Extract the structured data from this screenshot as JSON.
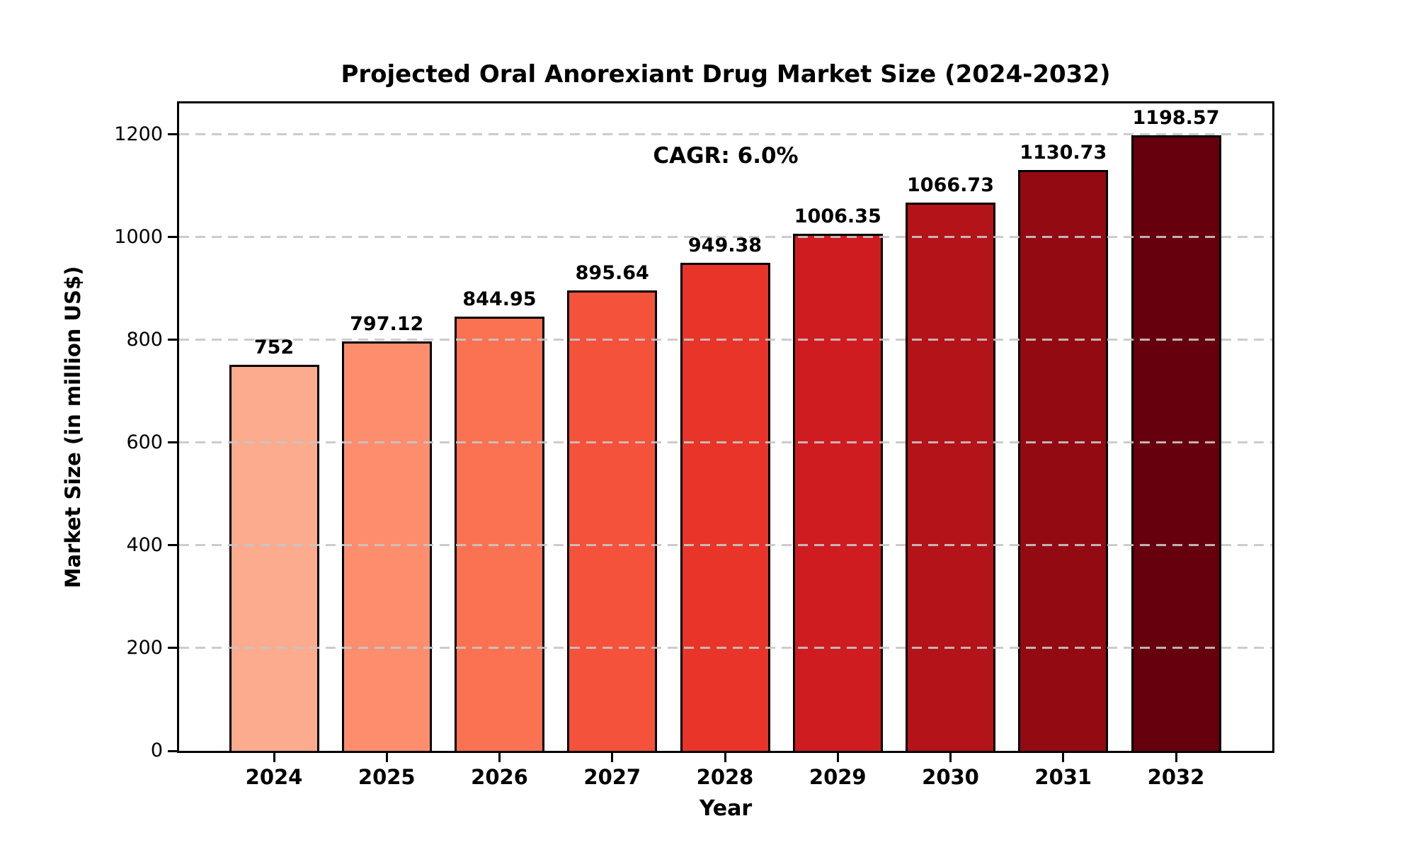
{
  "chart_data": {
    "type": "bar",
    "title": "Projected Oral Anorexiant Drug Market Size (2024-2032)",
    "annotation": "CAGR: 6.0%",
    "xlabel": "Year",
    "ylabel": "Market Size (in million US$)",
    "categories": [
      "2024",
      "2025",
      "2026",
      "2027",
      "2028",
      "2029",
      "2030",
      "2031",
      "2032"
    ],
    "values": [
      752,
      797.12,
      844.95,
      895.64,
      949.38,
      1006.35,
      1066.73,
      1130.73,
      1198.57
    ],
    "value_labels": [
      "752",
      "797.12",
      "844.95",
      "895.64",
      "949.38",
      "1006.35",
      "1066.73",
      "1130.73",
      "1198.57"
    ],
    "bar_colors": [
      "#fcab8e",
      "#fc8e6e",
      "#fb7252",
      "#f4523a",
      "#e83429",
      "#cf1c20",
      "#b41319",
      "#930a13",
      "#67000d"
    ],
    "bar_edge_color": "#000000",
    "yticks": [
      0,
      200,
      400,
      600,
      800,
      1000,
      1200
    ],
    "ylim": [
      0,
      1260
    ],
    "grid": "horizontal dashed gray, drawn above bars",
    "grid_color": "#c6c6c6",
    "legend": "none",
    "background": "#ffffff"
  }
}
